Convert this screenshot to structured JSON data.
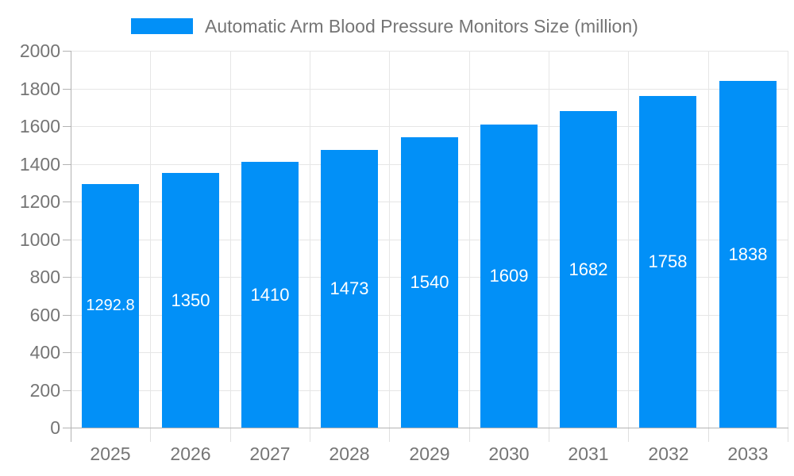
{
  "chart_data": {
    "type": "bar",
    "title": "Automatic Arm Blood Pressure Monitors Size (million)",
    "categories": [
      "2025",
      "2026",
      "2027",
      "2028",
      "2029",
      "2030",
      "2031",
      "2032",
      "2033"
    ],
    "series": [
      {
        "name": "Automatic Arm Blood Pressure Monitors Size (million)",
        "values": [
          1292.8,
          1350,
          1410,
          1473,
          1540,
          1609,
          1682,
          1758,
          1838
        ],
        "labels": [
          "1292.8",
          "1350",
          "1410",
          "1473",
          "1540",
          "1609",
          "1682",
          "1758",
          "1838"
        ]
      }
    ],
    "xlabel": "",
    "ylabel": "",
    "ylim": [
      0,
      2000
    ],
    "y_ticks": [
      0,
      200,
      400,
      600,
      800,
      1000,
      1200,
      1400,
      1600,
      1800,
      2000
    ],
    "grid": true,
    "legend_position": "top",
    "colors": {
      "bar": "#0290F7",
      "grid": "#e6e6e6",
      "axis": "#b3b3b3",
      "minor_tick": "#e0e0e0",
      "text": "#757575",
      "bar_label": "#ffffff"
    }
  }
}
